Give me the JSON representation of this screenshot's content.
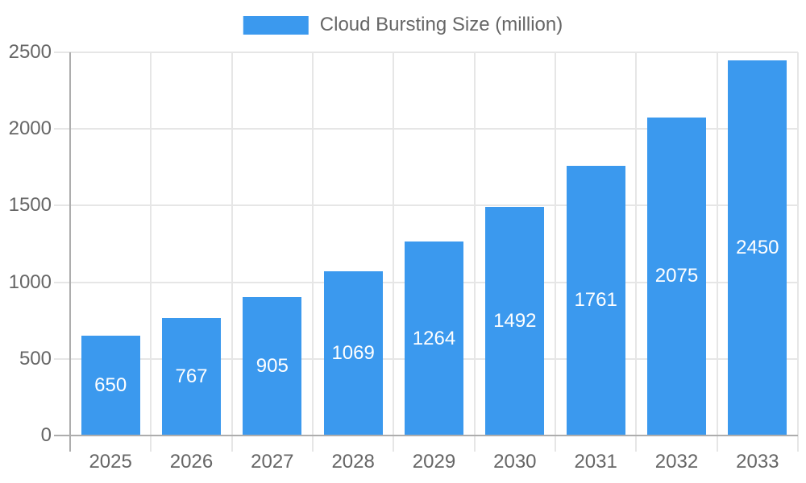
{
  "legend": {
    "label": "Cloud Bursting Size (million)",
    "swatch_color": "#3B99EE"
  },
  "chart_data": {
    "type": "bar",
    "title": "Cloud Bursting Size (million)",
    "categories": [
      "2025",
      "2026",
      "2027",
      "2028",
      "2029",
      "2030",
      "2031",
      "2032",
      "2033"
    ],
    "series": [
      {
        "name": "Cloud Bursting Size (million)",
        "color": "#3B99EE",
        "values": [
          650,
          767,
          905,
          1069,
          1264,
          1492,
          1761,
          2075,
          2450
        ]
      }
    ],
    "value_labels": [
      "650",
      "767",
      "905",
      "1069",
      "1264",
      "1492",
      "1761",
      "2075",
      "2450"
    ],
    "value_label_color": "#FFFFFF",
    "xlabel": "",
    "ylabel": "",
    "ylim": [
      0,
      2500
    ],
    "yticks": [
      0,
      500,
      1000,
      1500,
      2000,
      2500
    ],
    "grid": true,
    "legend_position": "top",
    "colors": {
      "bar": "#3B99EE",
      "axis_text": "#666666",
      "grid_line": "#E6E6E6",
      "axis_line": "#ADADAD",
      "background": "#FFFFFF"
    }
  }
}
